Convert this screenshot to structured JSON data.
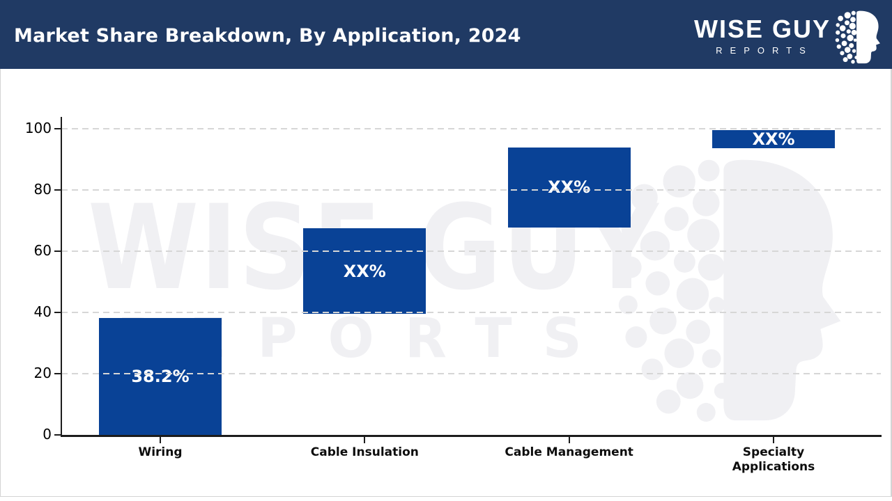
{
  "header": {
    "title": "Market Share Breakdown, By Application, 2024",
    "logo": {
      "line1": "WISE GUY",
      "line2": "REPORTS"
    }
  },
  "watermark": {
    "line1": "WISE GUY",
    "line2": "REPORTS"
  },
  "chart_data": {
    "type": "bar",
    "subtype": "waterfall",
    "title": "Market Share Breakdown, By Application, 2024",
    "categories": [
      "Wiring",
      "Cable Insulation",
      "Cable Management",
      "Specialty\nApplications"
    ],
    "segments": [
      {
        "category": "Wiring",
        "start": 0,
        "end": 38.2,
        "label": "38.2%"
      },
      {
        "category": "Cable Insulation",
        "start": 39.5,
        "end": 67.5,
        "label": "XX%"
      },
      {
        "category": "Cable Management",
        "start": 67.8,
        "end": 93.8,
        "label": "XX%"
      },
      {
        "category": "Specialty\nApplications",
        "start": 93.6,
        "end": 99.5,
        "label": "XX%"
      }
    ],
    "yticks": [
      0,
      20,
      40,
      60,
      80,
      100
    ],
    "ylim": [
      0,
      104
    ],
    "xlabel": "",
    "ylabel": "",
    "grid": true,
    "legend": "none",
    "bar_color": "#094296",
    "bar_label_color": "#ffffff",
    "grid_color": "#d6d6d6",
    "header_color": "#203a64",
    "watermark_color": "#f0f0f3"
  }
}
